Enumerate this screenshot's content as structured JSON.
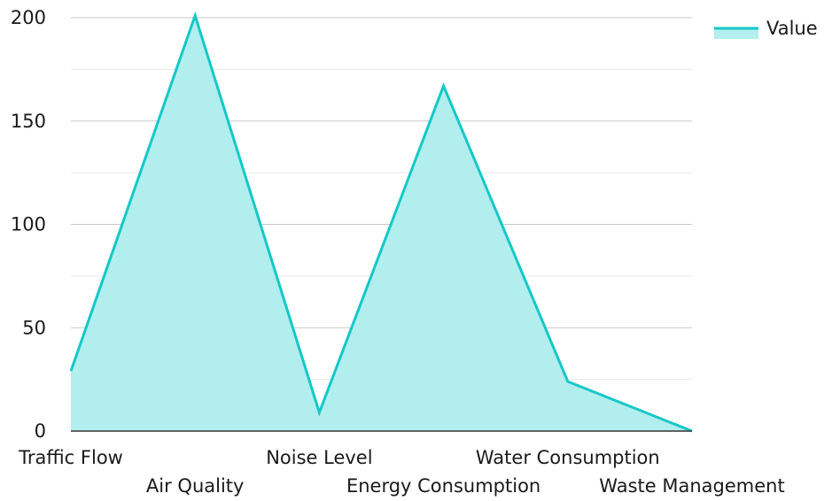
{
  "chart_data": {
    "type": "area",
    "categories": [
      "Traffic Flow",
      "Air Quality",
      "Noise Level",
      "Energy Consumption",
      "Water Consumption",
      "Waste Management"
    ],
    "series": [
      {
        "name": "Value",
        "values": [
          29,
          201,
          9,
          167,
          24,
          0
        ]
      }
    ],
    "ylim": [
      0,
      200
    ],
    "yticks": [
      0,
      50,
      100,
      150,
      200
    ],
    "grid": true,
    "legend": "top-right",
    "colors": {
      "line": "#14c8c8",
      "fill": "#b2eeee",
      "grid_major": "#c8c8c8",
      "grid_minor": "#e6e6e6",
      "axis": "#333333"
    }
  }
}
